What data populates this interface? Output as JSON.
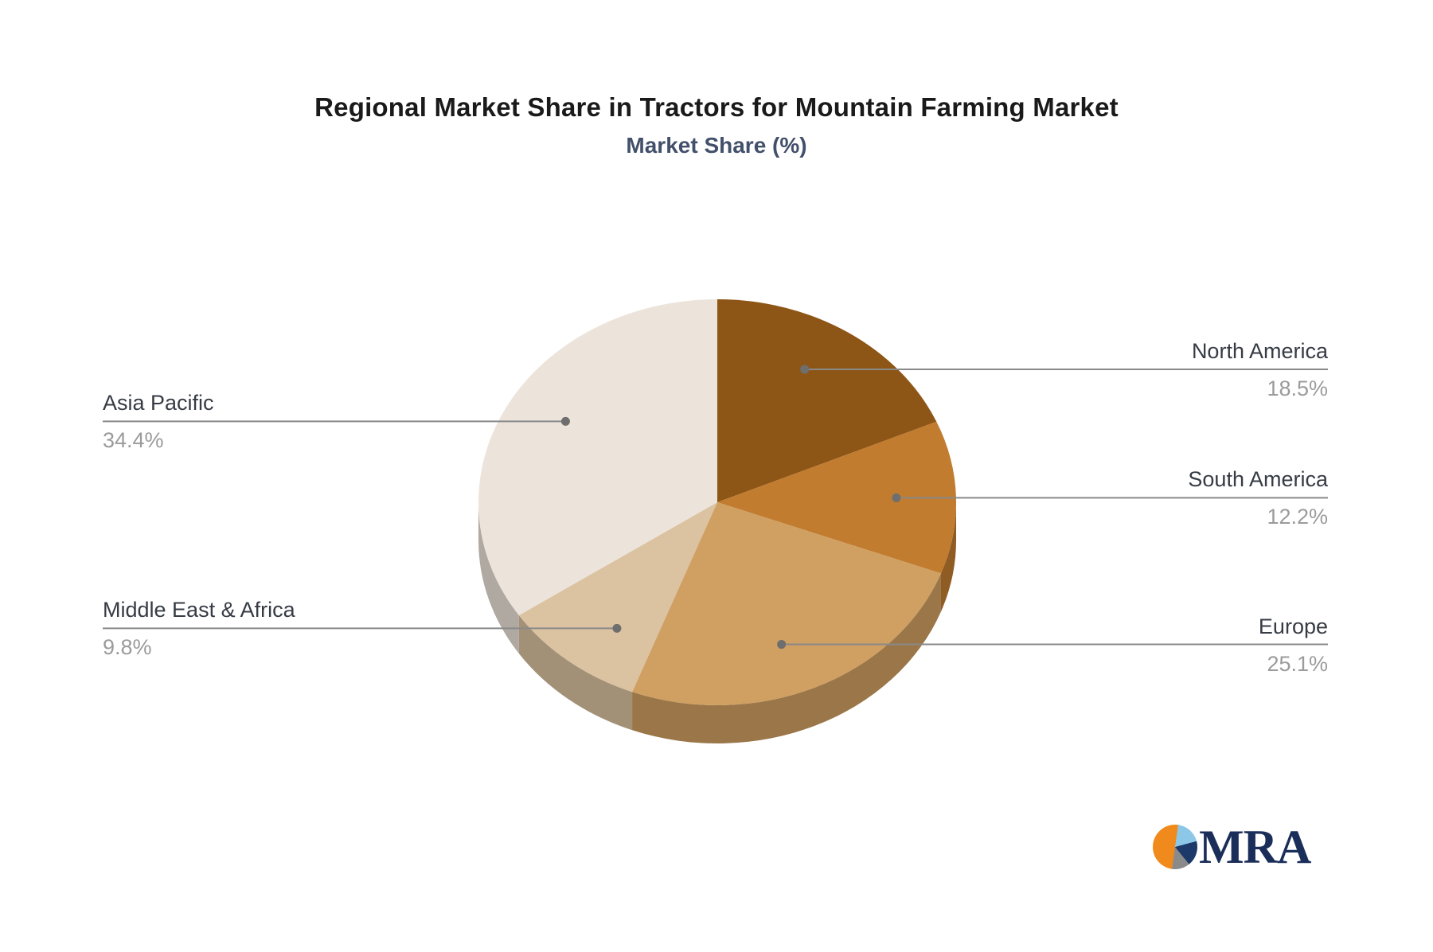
{
  "title": "Regional Market Share in Tractors for Mountain Farming Market",
  "subtitle": "Market Share (%)",
  "logo": {
    "text": "MRA"
  },
  "chart_data": {
    "type": "pie",
    "style": "3d",
    "title": "Regional Market Share in Tractors for Mountain Farming Market",
    "subtitle": "Market Share (%)",
    "start_angle_deg": 0,
    "direction": "clockwise",
    "legend": "none",
    "categories": [
      "North America",
      "South America",
      "Europe",
      "Middle East & Africa",
      "Asia Pacific"
    ],
    "values": [
      18.5,
      12.2,
      25.1,
      9.8,
      34.4
    ],
    "value_labels": [
      "18.5%",
      "12.2%",
      "25.1%",
      "9.8%",
      "34.4%"
    ],
    "colors": [
      "#8E5616",
      "#C17C2F",
      "#D09F62",
      "#DBC2A1",
      "#ECE4DB"
    ],
    "label_sides": [
      "right",
      "right",
      "right",
      "left",
      "left"
    ],
    "leader_line_color": "#898989",
    "leader_dot_color": "#6e6e6e",
    "category_text_color": "#363b44",
    "value_text_color": "#9b9b9b"
  }
}
